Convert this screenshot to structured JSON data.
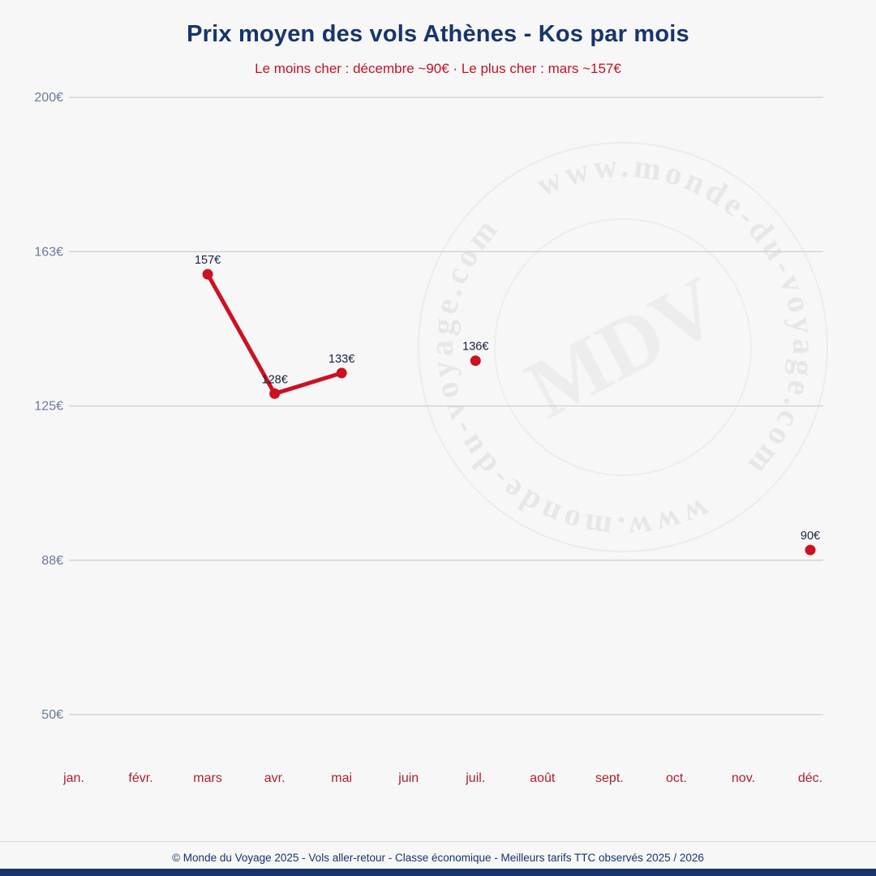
{
  "header": {
    "title": "Prix moyen des vols Athènes - Kos par mois",
    "subtitle": "Le moins cher : décembre ~90€ · Le plus cher : mars ~157€"
  },
  "chart_data": {
    "type": "line",
    "title": "Prix moyen des vols Athènes - Kos par mois",
    "categories": [
      "jan.",
      "févr.",
      "mars",
      "avr.",
      "mai",
      "juin",
      "juil.",
      "août",
      "sept.",
      "oct.",
      "nov.",
      "déc."
    ],
    "values": [
      null,
      null,
      157,
      128,
      133,
      null,
      136,
      null,
      null,
      null,
      null,
      90
    ],
    "point_labels": [
      "",
      "",
      "157€",
      "128€",
      "133€",
      "",
      "136€",
      "",
      "",
      "",
      "",
      "90€"
    ],
    "y_ticks": [
      {
        "label": "200€",
        "value": 200
      },
      {
        "label": "163€",
        "value": 162.5
      },
      {
        "label": "125€",
        "value": 125
      },
      {
        "label": "88€",
        "value": 87.5
      },
      {
        "label": "50€",
        "value": 50
      }
    ],
    "ylim": [
      50,
      200
    ],
    "xlabel": "",
    "ylabel": "",
    "grid": true,
    "legend": false,
    "line_color": "#cc1122"
  },
  "colors": {
    "title_navy": "#17356b",
    "subtitle_red": "#c41226",
    "line_red": "#cc1122",
    "point_label": "#16213f",
    "x_tick": "#ad1f2d",
    "y_tick": "#6b7a99",
    "grid": "#c7cfda",
    "watermark": "#e9e9e9",
    "background": "#f7f7f7"
  },
  "watermark": {
    "ring_text": "www.monde-du-voyage.com",
    "center_text": "MDV"
  },
  "footer": {
    "text": "© Monde du Voyage 2025 - Vols aller-retour - Classe économique - Meilleurs tarifs TTC observés 2025 / 2026"
  }
}
